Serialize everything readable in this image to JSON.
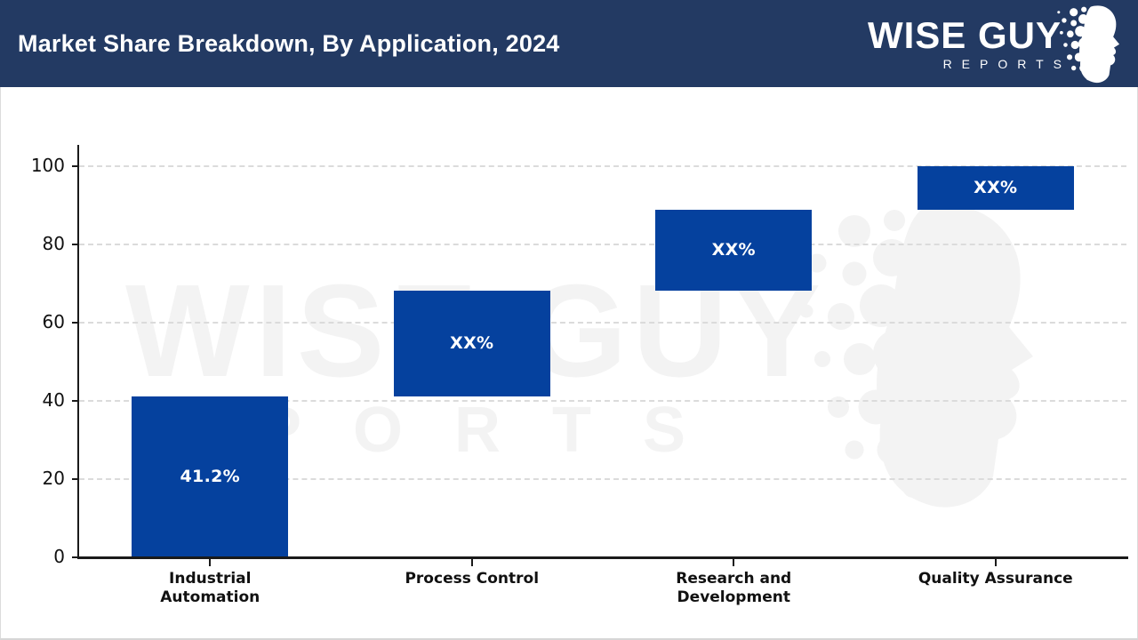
{
  "header": {
    "title": "Market Share Breakdown, By Application, 2024",
    "brand": {
      "name": "WISE GUY",
      "sub": "REPORTS"
    },
    "bg_color": "#233A63"
  },
  "watermark": {
    "line1": "WISE GUY",
    "line2": "PORTS"
  },
  "chart_data": {
    "type": "bar",
    "subtype": "waterfall-floating-bars",
    "title": "Market Share Breakdown, By Application, 2024",
    "categories": [
      "Industrial\nAutomation",
      "Process Control",
      "Research and\nDevelopment",
      "Quality Assurance"
    ],
    "segments": [
      {
        "category": "Industrial Automation",
        "start": 0,
        "end": 41.2,
        "label": "41.2%"
      },
      {
        "category": "Process Control",
        "start": 41.2,
        "end": 68.2,
        "label": "XX%"
      },
      {
        "category": "Research and Development",
        "start": 68.2,
        "end": 88.9,
        "label": "XX%"
      },
      {
        "category": "Quality Assurance",
        "start": 88.9,
        "end": 100,
        "label": "XX%"
      }
    ],
    "bar_labels": [
      "41.2%",
      "XX%",
      "XX%",
      "XX%"
    ],
    "yticks": [
      0,
      20,
      40,
      60,
      80,
      100
    ],
    "ylim": [
      0,
      105.5
    ],
    "xlabel": "",
    "ylabel": "",
    "legend": "none",
    "grid": "horizontal-dashed",
    "bar_color": "#05419E",
    "label_color": "#ffffff"
  }
}
